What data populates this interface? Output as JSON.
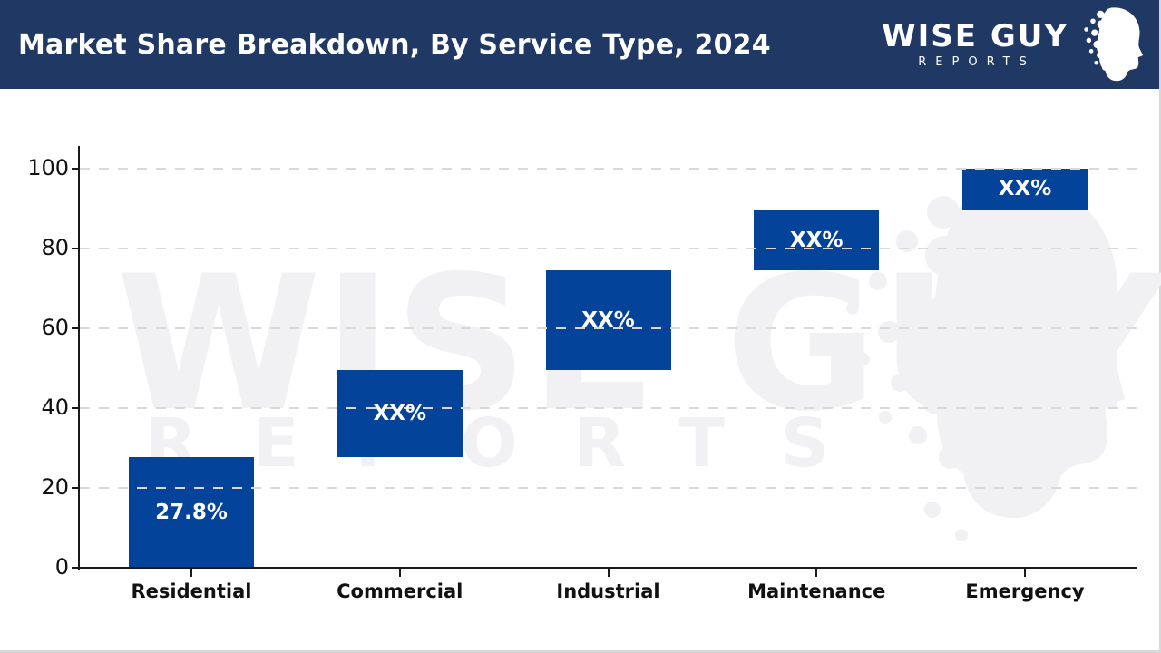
{
  "header": {
    "title": "Market Share Breakdown, By Service Type, 2024",
    "logo": {
      "primary": "WISE GUY",
      "secondary": "REPORTS",
      "face_icon": "dotted-head-profile"
    }
  },
  "watermark": {
    "primary": "WISE GUY",
    "secondary": "REPORTS",
    "face_icon": "dotted-head-profile"
  },
  "colors": {
    "header_bg": "#1f3864",
    "bar": "#04439a",
    "grid": "#d9d9d9",
    "axis": "#1a1a1a",
    "bar_label_text": "#ffffff",
    "watermark": "#f1f1f4"
  },
  "chart_data": {
    "type": "bar",
    "subtype": "waterfall",
    "title": "Market Share Breakdown, By Service Type, 2024",
    "xlabel": "",
    "ylabel": "",
    "ylim": [
      0,
      100
    ],
    "yticks": [
      0,
      20,
      40,
      60,
      80,
      100
    ],
    "grid": true,
    "legend": false,
    "categories": [
      "Residential",
      "Commercial",
      "Industrial",
      "Maintenance",
      "Emergency"
    ],
    "segments": [
      {
        "category": "Residential",
        "start": 0,
        "end": 27.8,
        "label": "27.8%"
      },
      {
        "category": "Commercial",
        "start": 27.8,
        "end": 49.5,
        "label": "XX%"
      },
      {
        "category": "Industrial",
        "start": 49.5,
        "end": 74.5,
        "label": "XX%"
      },
      {
        "category": "Maintenance",
        "start": 74.5,
        "end": 89.8,
        "label": "XX%"
      },
      {
        "category": "Emergency",
        "start": 89.8,
        "end": 100,
        "label": "XX%"
      }
    ]
  }
}
